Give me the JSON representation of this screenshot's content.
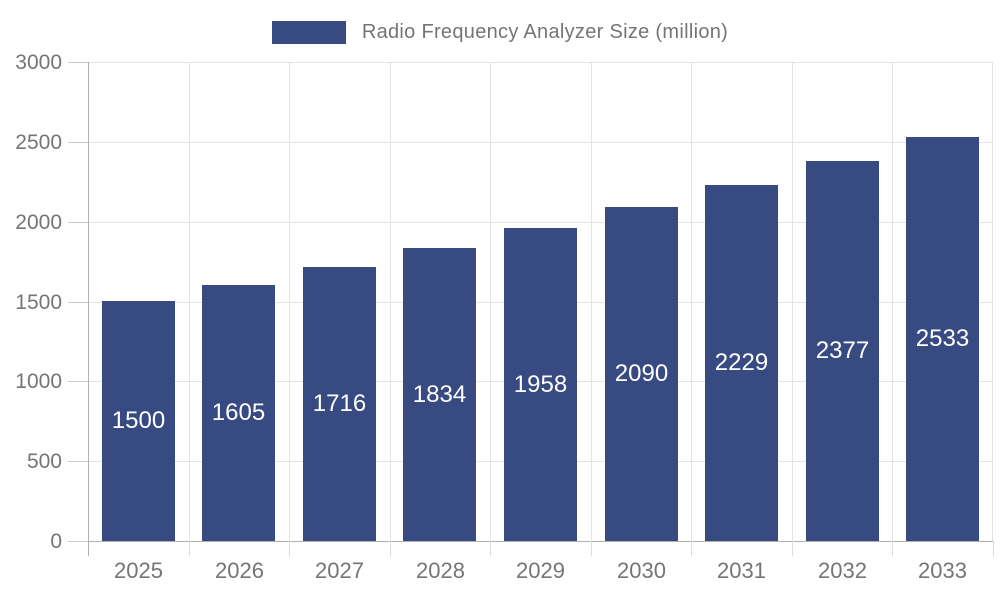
{
  "legend": {
    "label": "Radio Frequency Analyzer Size (million)"
  },
  "chart_data": {
    "type": "bar",
    "title": "",
    "series_name": "Radio Frequency Analyzer Size (million)",
    "categories": [
      "2025",
      "2026",
      "2027",
      "2028",
      "2029",
      "2030",
      "2031",
      "2032",
      "2033"
    ],
    "values": [
      1500,
      1605,
      1716,
      1834,
      1958,
      2090,
      2229,
      2377,
      2533
    ],
    "xlabel": "",
    "ylabel": "",
    "ylim": [
      0,
      3000
    ],
    "yticks": [
      0,
      500,
      1000,
      1500,
      2000,
      2500,
      3000
    ],
    "grid": true,
    "legend_position": "top",
    "bar_color": "#374a82",
    "value_label_color": "#ffffff",
    "axis_text_color": "#757575",
    "grid_color": "#e4e4e4",
    "axis_line_color": "#b0b0b0"
  }
}
